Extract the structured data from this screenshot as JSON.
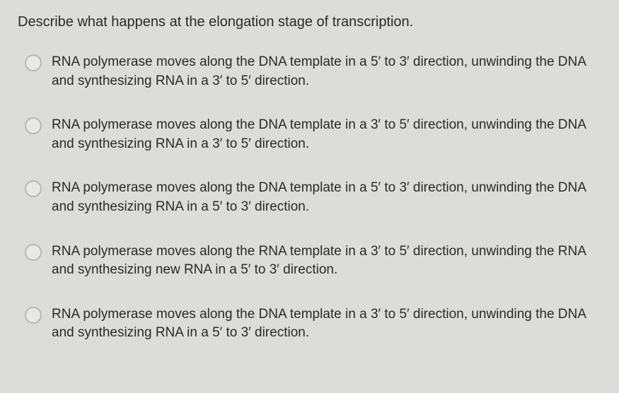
{
  "question": {
    "title": "Describe what happens at the elongation stage of transcription."
  },
  "options": [
    {
      "text": "RNA polymerase moves along the DNA template in a 5′ to 3′ direction, unwinding the DNA and synthesizing RNA in a 3′ to 5′ direction."
    },
    {
      "text": "RNA polymerase moves along the DNA template in a 3′ to 5′ direction, unwinding the DNA and synthesizing RNA in a 3′ to 5′ direction."
    },
    {
      "text": "RNA polymerase moves along the DNA template in a 5′ to 3′ direction, unwinding the DNA and synthesizing RNA in a 5′ to 3′ direction."
    },
    {
      "text": "RNA polymerase moves along the RNA template in a 3′ to 5′ direction, unwinding the RNA and synthesizing new RNA in a 5′ to 3′ direction."
    },
    {
      "text": "RNA polymerase moves along the DNA template in a 3′ to 5′ direction, unwinding the DNA and synthesizing RNA in a 5′ to 3′ direction."
    }
  ],
  "colors": {
    "background": "#dcdcd8",
    "text": "#2a2a2a",
    "radio_border": "#b8b8b2",
    "radio_fill": "#e8e8e4"
  },
  "typography": {
    "title_fontsize": 20,
    "option_fontsize": 19,
    "line_height": 1.4
  }
}
